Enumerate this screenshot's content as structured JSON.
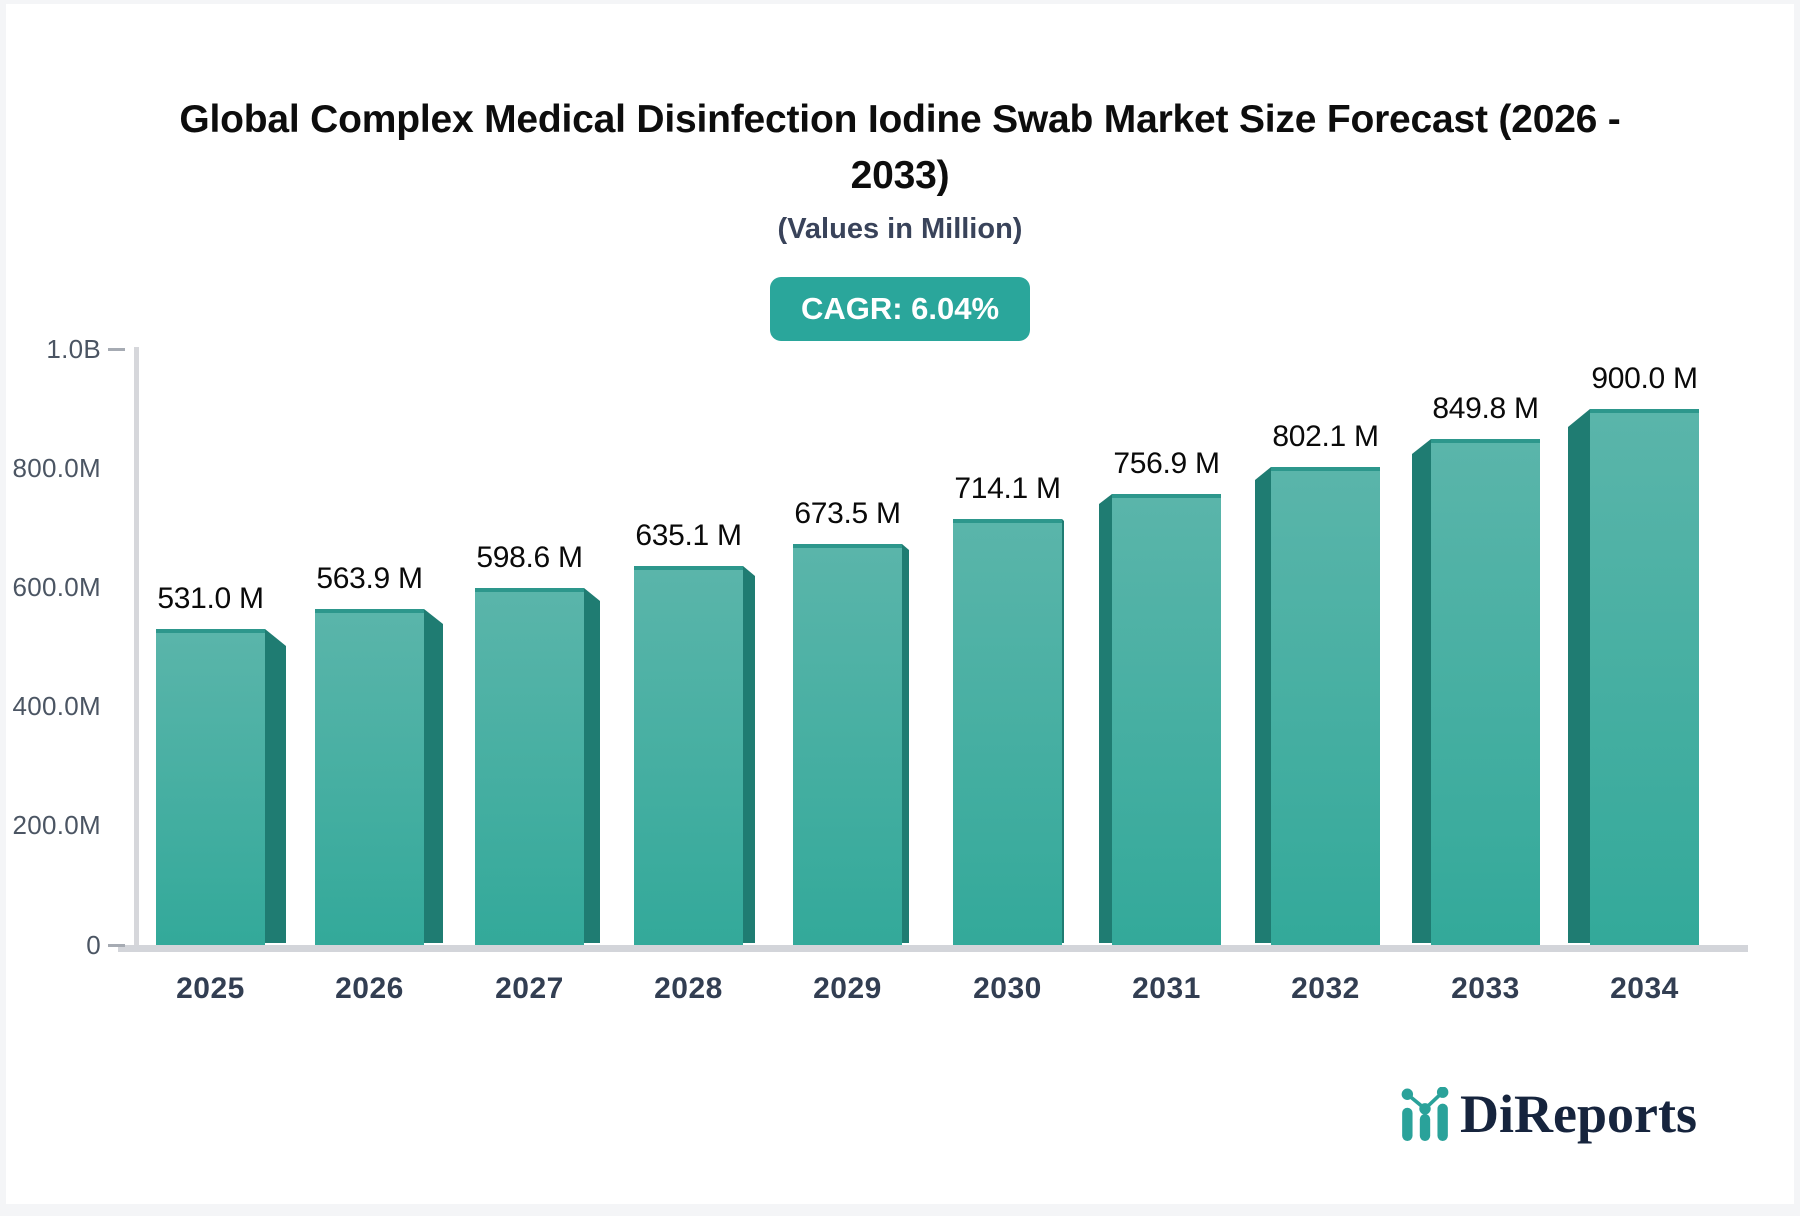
{
  "page": {
    "title_lines": {
      "0": "Global Complex Medical Disinfection Iodine Swab Market Size Forecast (2026 -",
      "1": "2033)"
    },
    "subtitle": "(Values in Million)",
    "badge_label": "CAGR: 6.04%"
  },
  "brand": {
    "name": "DiReports",
    "icon": "mini-bar-chart-logo-icon"
  },
  "colors": {
    "bar_face_top": "#5ab5aa",
    "bar_face_bottom": "#33a99a",
    "bar_side": "#1f7c72",
    "bar_top_edge": "#2d978c",
    "badge_bg": "#2aa69b",
    "axis_line": "#d4d6da",
    "tick_dash": "#a6abb3",
    "y_label": "#4b5563",
    "x_label": "#323e52",
    "value_label": "#0a0a0a",
    "title": "#0d0d0d",
    "subtitle": "#39435a",
    "brand_navy": "#16243d",
    "brand_teal": "#2aa29a"
  },
  "chart_data": {
    "type": "bar",
    "bar_style": "3d-perspective",
    "title": "Global Complex Medical Disinfection Iodine Swab Market Size Forecast (2026 - 2033)",
    "subtitle": "(Values in Million)",
    "cagr_percent": 6.04,
    "units": "Million",
    "categories": [
      "2025",
      "2026",
      "2027",
      "2028",
      "2029",
      "2030",
      "2031",
      "2032",
      "2033",
      "2034"
    ],
    "values": [
      531.0,
      563.9,
      598.6,
      635.1,
      673.5,
      714.1,
      756.9,
      802.1,
      849.8,
      900.0
    ],
    "value_labels": [
      "531.0 M",
      "563.9 M",
      "598.6 M",
      "635.1 M",
      "673.5 M",
      "714.1 M",
      "756.9 M",
      "802.1 M",
      "849.8 M",
      "900.0 M"
    ],
    "xlabel": "",
    "ylabel": "",
    "ylim_millions": [
      0,
      1000
    ],
    "yticks": [
      {
        "label": "1.0B",
        "value": 1000,
        "dash": true
      },
      {
        "label": "800.0M",
        "value": 800,
        "dash": false
      },
      {
        "label": "600.0M",
        "value": 600,
        "dash": false
      },
      {
        "label": "400.0M",
        "value": 400,
        "dash": false
      },
      {
        "label": "200.0M",
        "value": 200,
        "dash": false
      },
      {
        "label": "0",
        "value": 0,
        "dash": true
      }
    ],
    "grid": false,
    "legend": null
  }
}
